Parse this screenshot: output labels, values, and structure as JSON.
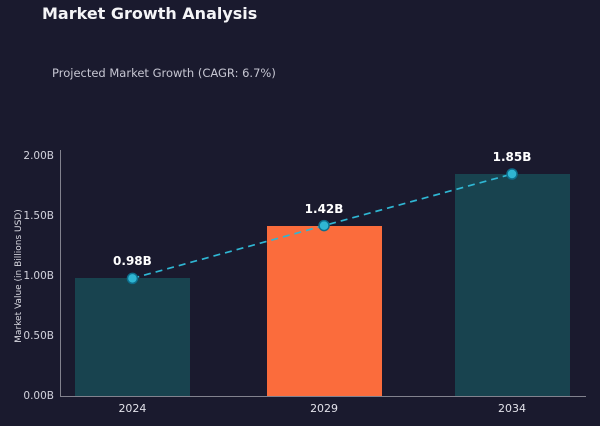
{
  "chart_data": {
    "type": "bar",
    "title": "Market Growth Analysis",
    "subtitle": "Projected Market Growth (CAGR: 6.7%)",
    "categories": [
      "2024",
      "2029",
      "2034"
    ],
    "values": [
      0.98,
      1.42,
      1.85
    ],
    "value_labels": [
      "0.98B",
      "1.42B",
      "1.85B"
    ],
    "xlabel": "",
    "ylabel": "Market Value (in Billions USD)",
    "ylim": [
      0,
      2.0
    ],
    "ytick_step": 0.5,
    "ytick_labels": [
      "0.00B",
      "0.50B",
      "1.00B",
      "1.50B",
      "2.00B"
    ],
    "grid": false,
    "legend": "none",
    "overlay": "dashed trend line with circular markers connecting bar tops",
    "colors": {
      "background": "#1a1a2e",
      "bar_colors": [
        "#18434f",
        "#fb6c3c",
        "#18434f"
      ],
      "line": "#2fb6d3",
      "marker_fill": "#2fb6d3",
      "marker_stroke": "#0e6e8c",
      "axis": "#82828e",
      "title_text": "#f4f4f7",
      "muted_text": "#c6c6d2"
    }
  }
}
